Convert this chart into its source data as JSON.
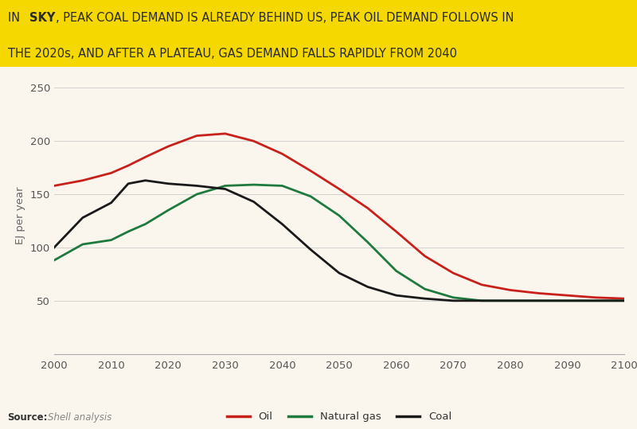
{
  "title_bg": "#F5D800",
  "chart_bg": "#FAF6EE",
  "ylabel": "EJ per year",
  "legend_colors": [
    "#C8201A",
    "#1E7A3E",
    "#1A1A1A"
  ],
  "years": [
    2000,
    2005,
    2010,
    2013,
    2016,
    2020,
    2025,
    2030,
    2035,
    2040,
    2045,
    2050,
    2055,
    2060,
    2065,
    2070,
    2075,
    2080,
    2085,
    2090,
    2095,
    2100
  ],
  "oil": [
    158,
    163,
    170,
    177,
    185,
    195,
    205,
    207,
    200,
    188,
    172,
    155,
    137,
    115,
    92,
    76,
    65,
    60,
    57,
    55,
    53,
    52
  ],
  "gas": [
    88,
    103,
    107,
    115,
    122,
    135,
    150,
    158,
    159,
    158,
    148,
    130,
    105,
    78,
    61,
    53,
    50,
    50,
    50,
    50,
    50,
    50
  ],
  "coal": [
    100,
    128,
    142,
    160,
    163,
    160,
    158,
    155,
    143,
    122,
    98,
    76,
    63,
    55,
    52,
    50,
    50,
    50,
    50,
    50,
    50,
    50
  ],
  "ylim": [
    0,
    260
  ],
  "yticks": [
    0,
    50,
    100,
    150,
    200,
    250
  ],
  "xticks": [
    2000,
    2010,
    2020,
    2030,
    2040,
    2050,
    2060,
    2070,
    2080,
    2090,
    2100
  ]
}
